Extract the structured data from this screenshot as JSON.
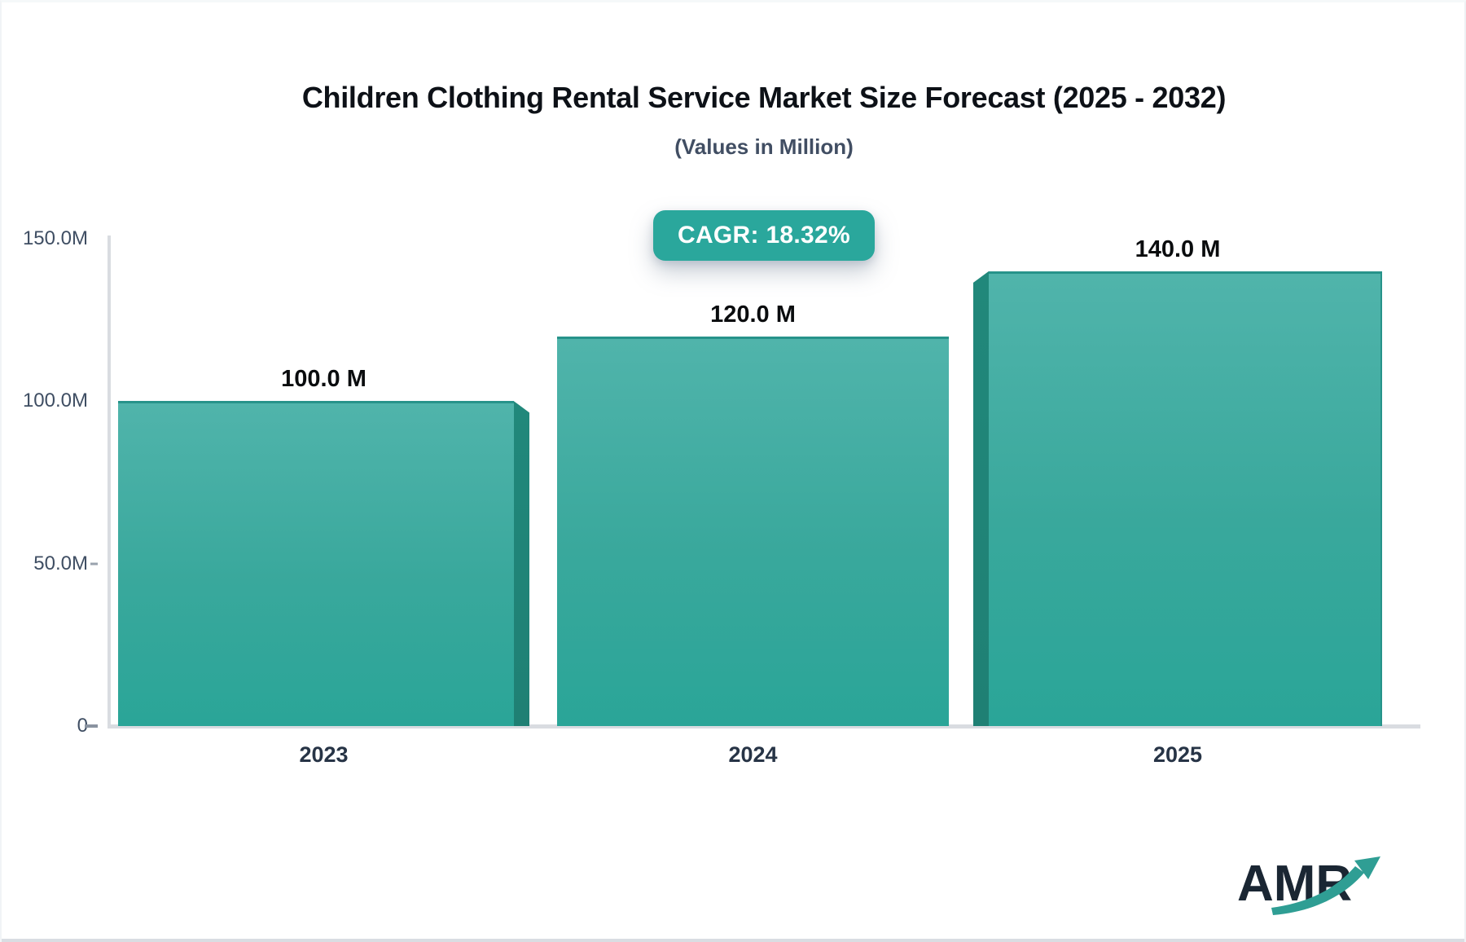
{
  "page": {
    "background": "#ffffff"
  },
  "header": {
    "title": "Children Clothing Rental Service Market Size Forecast (2025 - 2032)",
    "subtitle": "(Values in Million)"
  },
  "badge": {
    "label": "CAGR: 18.32%",
    "background": "#2aa79c",
    "text_color": "#ffffff"
  },
  "chart_data": {
    "type": "bar",
    "title": "Children Clothing Rental Service Market Size Forecast (2025 - 2032)",
    "subtitle": "(Values in Million)",
    "unit": "Million",
    "categories": [
      "2023",
      "2024",
      "2025"
    ],
    "values": [
      100.0,
      120.0,
      140.0
    ],
    "value_labels": [
      "100.0 M",
      "120.0 M",
      "140.0 M"
    ],
    "cagr_label": "CAGR: 18.32%",
    "ylim": [
      0,
      150
    ],
    "ytick_labels": [
      "150.0M",
      "100.0M",
      "50.0M",
      "0"
    ],
    "grid": false,
    "legend": false,
    "bar_colors": {
      "top": "#50b4ab",
      "bottom": "#2aa598",
      "side": "#1f8074",
      "edge": "#27938a"
    },
    "axis_color": "#d9dce1"
  },
  "logo": {
    "text": "AMR",
    "text_color": "#1a2633",
    "arrow_color": "#2f9e94"
  }
}
